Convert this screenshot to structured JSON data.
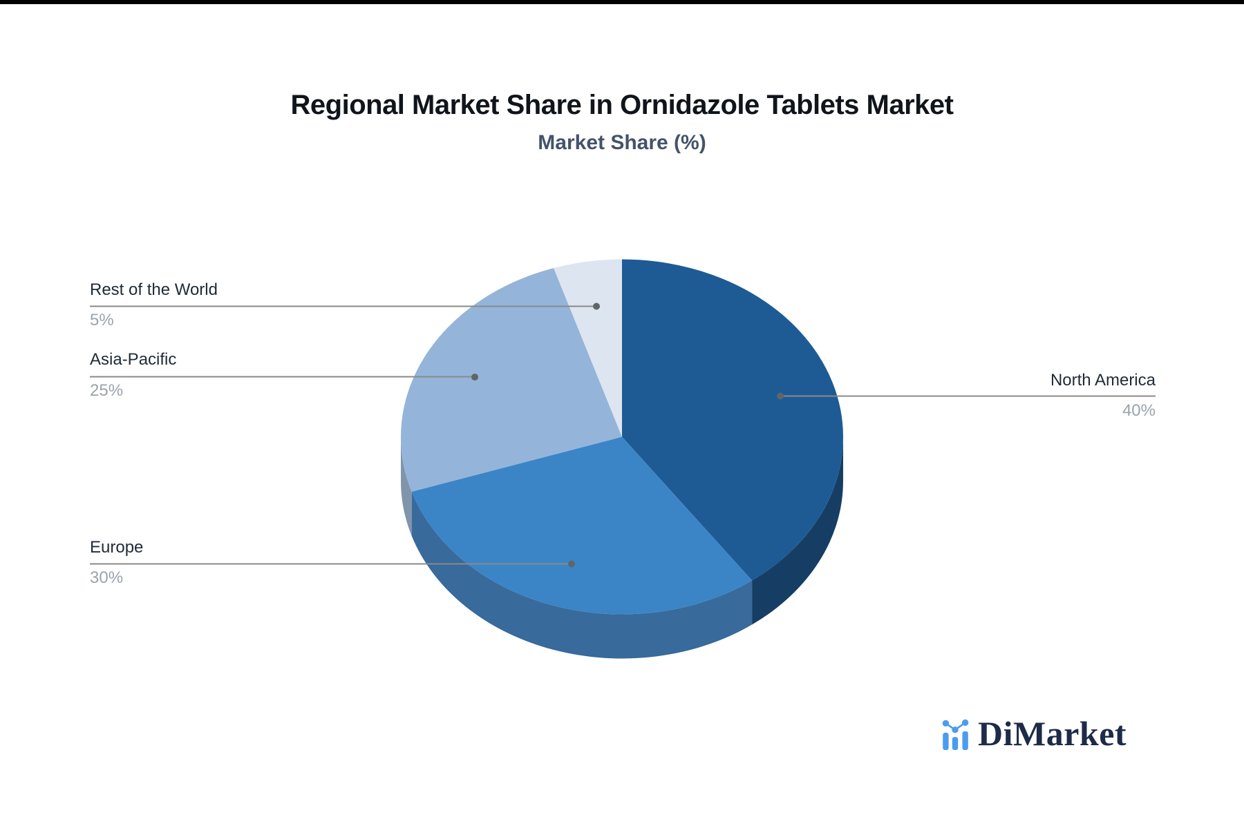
{
  "header": {
    "title": "Regional Market Share in Ornidazole Tablets Market",
    "subtitle": "Market Share (%)"
  },
  "chart_data": {
    "type": "pie",
    "effect": "3d",
    "title": "Regional Market Share in Ornidazole Tablets Market",
    "subtitle": "Market Share (%)",
    "unit": "%",
    "direction": "clockwise",
    "start_angle_deg": 0,
    "legend_position": "callouts",
    "categories": [
      "North America",
      "Europe",
      "Asia-Pacific",
      "Rest of the World"
    ],
    "values": [
      40,
      30,
      25,
      5
    ],
    "slices": [
      {
        "label": "North America",
        "value": 40,
        "pct_label": "40%",
        "color": "#1e5b94",
        "side_color": "#163e64"
      },
      {
        "label": "Europe",
        "value": 30,
        "pct_label": "30%",
        "color": "#3b85c7",
        "side_color": "#386a9b"
      },
      {
        "label": "Asia-Pacific",
        "value": 25,
        "pct_label": "25%",
        "color": "#94b5d9",
        "side_color": "#8095ab"
      },
      {
        "label": "Rest of the World",
        "value": 5,
        "pct_label": "5%",
        "color": "#dce5f0",
        "side_color": "#b8c5d6"
      }
    ]
  },
  "callouts": {
    "rest_of_the_world": {
      "name": "Rest of the World",
      "pct": "5%"
    },
    "asia_pacific": {
      "name": "Asia-Pacific",
      "pct": "25%"
    },
    "europe": {
      "name": "Europe",
      "pct": "30%"
    },
    "north_america": {
      "name": "North America",
      "pct": "40%"
    }
  },
  "footer": {
    "brand": "DiMarket"
  },
  "colors": {
    "title": "#10151c",
    "subtitle": "#43536a",
    "callout_name": "#1f2a36",
    "callout_pct": "#9aa3ac",
    "leader_line": "#8a8a8a",
    "leader_dot": "#5f6569",
    "brand_text": "#1d2b48",
    "brand_icon": "#4b9cf1"
  }
}
